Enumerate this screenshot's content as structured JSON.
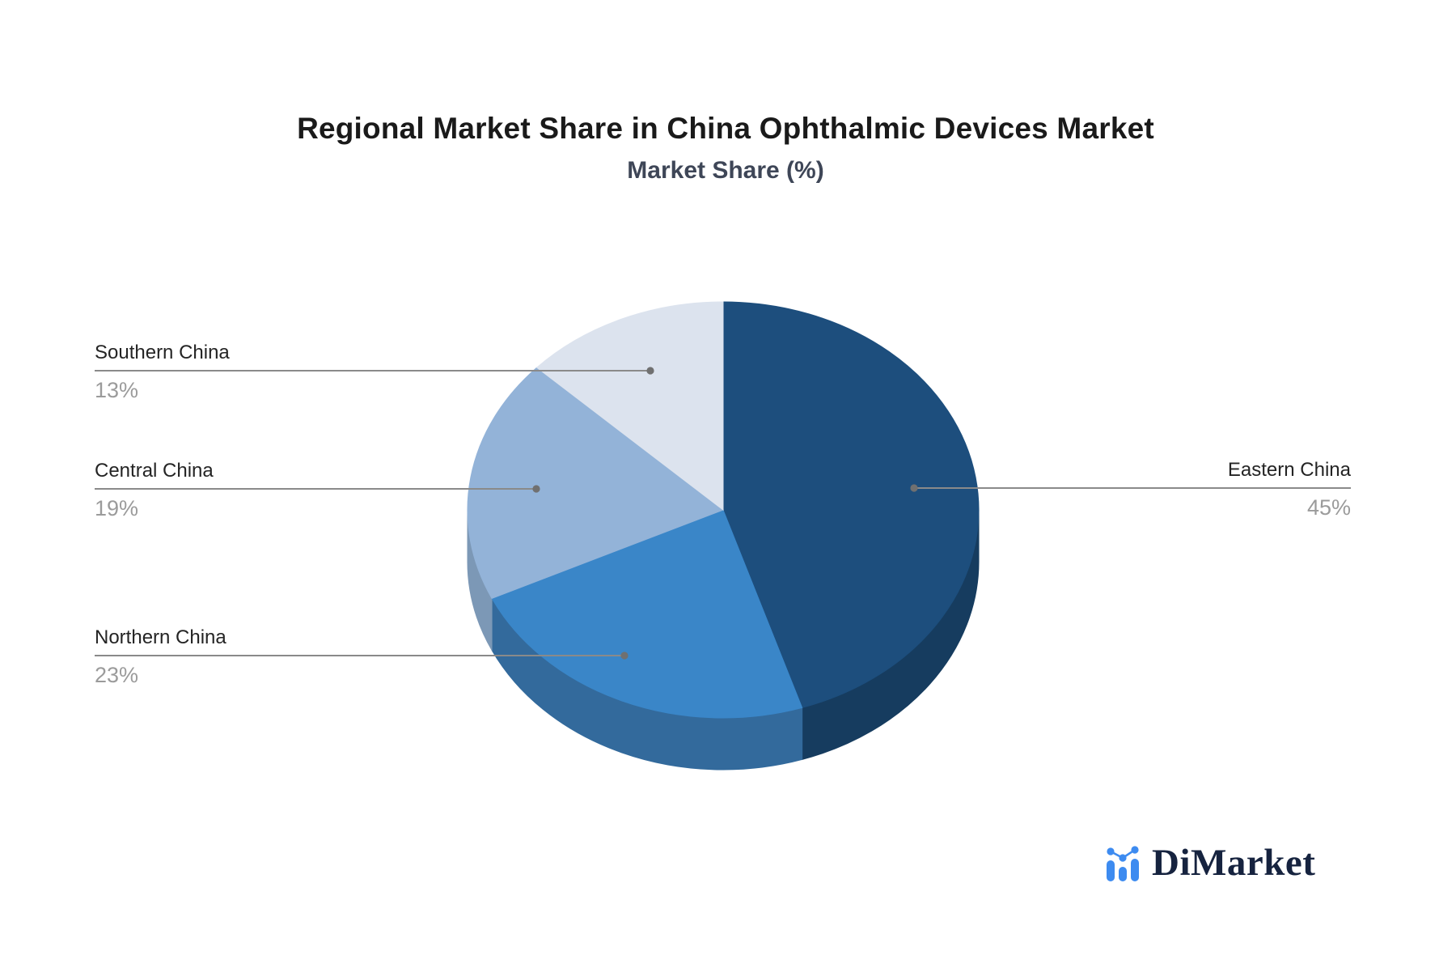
{
  "page": {
    "background": "#ffffff"
  },
  "chart_data": {
    "type": "pie",
    "style": "3d",
    "title": "Regional Market Share in China Ophthalmic Devices Market",
    "subtitle": "Market Share (%)",
    "unit": "%",
    "start_angle_deg": 0,
    "direction": "clockwise",
    "legend_position": "none",
    "slices": [
      {
        "label": "Eastern China",
        "value": 45,
        "pct_label": "45%",
        "color": "#1D4E7D",
        "side_color": "#163C5F"
      },
      {
        "label": "Northern China",
        "value": 23,
        "pct_label": "23%",
        "color": "#3A86C8",
        "side_color": "#336A9C"
      },
      {
        "label": "Central China",
        "value": 19,
        "pct_label": "19%",
        "color": "#93B3D8",
        "side_color": "#7C98B6"
      },
      {
        "label": "Southern China",
        "value": 13,
        "pct_label": "13%",
        "color": "#DCE3EE",
        "side_color": "#B9C4D4"
      }
    ],
    "label_style": {
      "name_color": "#242424",
      "pct_color": "#9B9B9B",
      "connector_color": "#8A8A8A",
      "connector_dot_color": "#707070"
    }
  },
  "logo": {
    "text": "DiMarket",
    "icon": "bar-chart-icon",
    "icon_color": "#3D8BF0",
    "text_color": "#16233F"
  }
}
